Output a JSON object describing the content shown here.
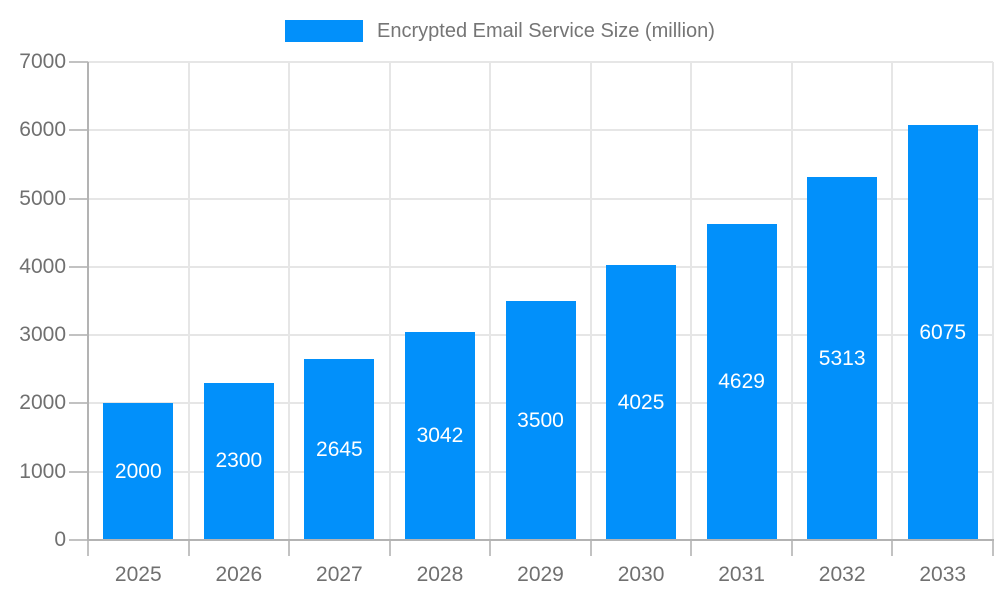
{
  "legend": {
    "label": "Encrypted Email Service Size (million)"
  },
  "colors": {
    "bar": "#0290fa",
    "grid": "#e6e6e6",
    "axis": "#b3b3b3",
    "tick": "#c2c2c2",
    "axis_label": "#707070",
    "legend_text": "#757575",
    "bar_label": "#ffffff",
    "background": "#ffffff"
  },
  "chart_data": {
    "type": "bar",
    "title": "Encrypted Email Service Size (million)",
    "categories": [
      "2025",
      "2026",
      "2027",
      "2028",
      "2029",
      "2030",
      "2031",
      "2032",
      "2033"
    ],
    "values": [
      2000,
      2300,
      2645,
      3042,
      3500,
      4025,
      4629,
      5313,
      6075
    ],
    "xlabel": "",
    "ylabel": "",
    "ylim": [
      0,
      7000
    ],
    "ytick_interval": 1000,
    "grid": true,
    "legend_position": "top",
    "bar_value_labels": "inside-center"
  }
}
